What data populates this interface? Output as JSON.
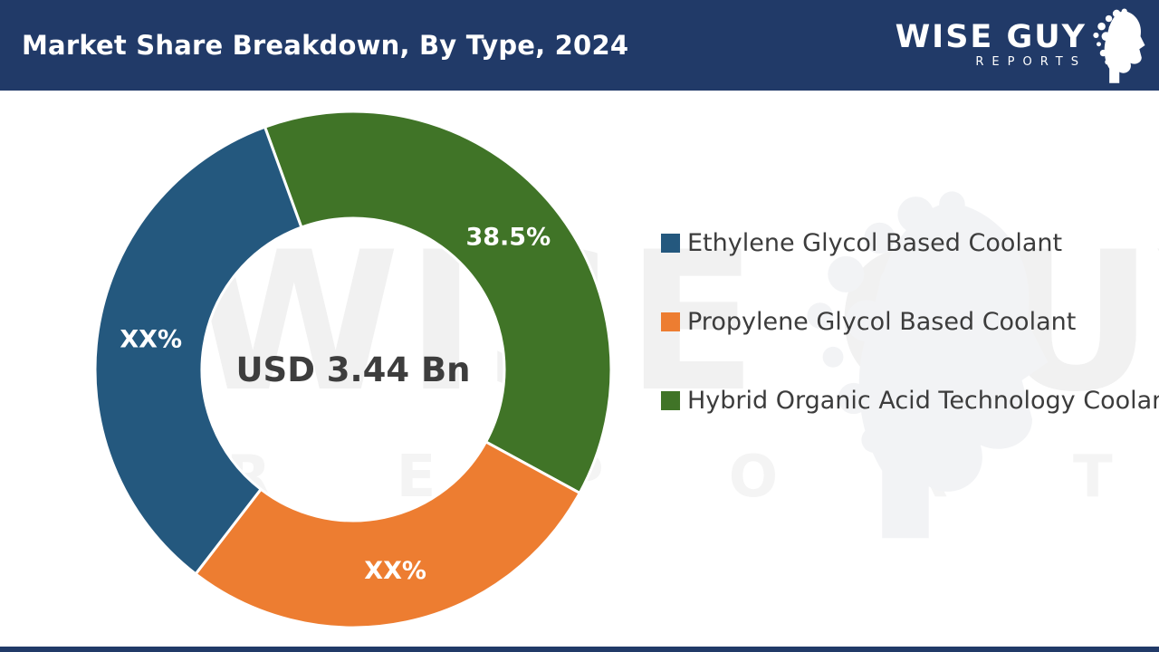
{
  "header": {
    "title": "Market Share Breakdown, By Type, 2024",
    "brand": {
      "line1": "WISE GUY",
      "line2": "REPORTS"
    }
  },
  "watermark": {
    "line1": "WISE GUY",
    "line2": "R E P O R T S"
  },
  "colors": {
    "header_bg": "#213a68",
    "blue": "#24587e",
    "orange": "#ed7d31",
    "green": "#407427",
    "label_text": "#3c3c3c",
    "center_text": "#3d3d3d"
  },
  "chart_data": {
    "type": "donut",
    "title": "Market Share Breakdown, By Type, 2024",
    "center_label": "USD 3.44 Bn",
    "start_angle_deg": -20,
    "direction": "counter-clockwise",
    "legend_position": "right",
    "segments": [
      {
        "id": "ethylene",
        "name": "Ethylene Glycol Based Coolant",
        "label": "XX%",
        "value": 34.0,
        "value_is_estimated": true,
        "color": "#24587e"
      },
      {
        "id": "propylene",
        "name": "Propylene Glycol Based Coolant",
        "label": "XX%",
        "value": 27.5,
        "value_is_estimated": true,
        "color": "#ed7d31"
      },
      {
        "id": "hybrid",
        "name": "Hybrid Organic Acid Technology Coolant",
        "label": "38.5%",
        "value": 38.5,
        "value_is_estimated": false,
        "color": "#407427"
      }
    ]
  }
}
